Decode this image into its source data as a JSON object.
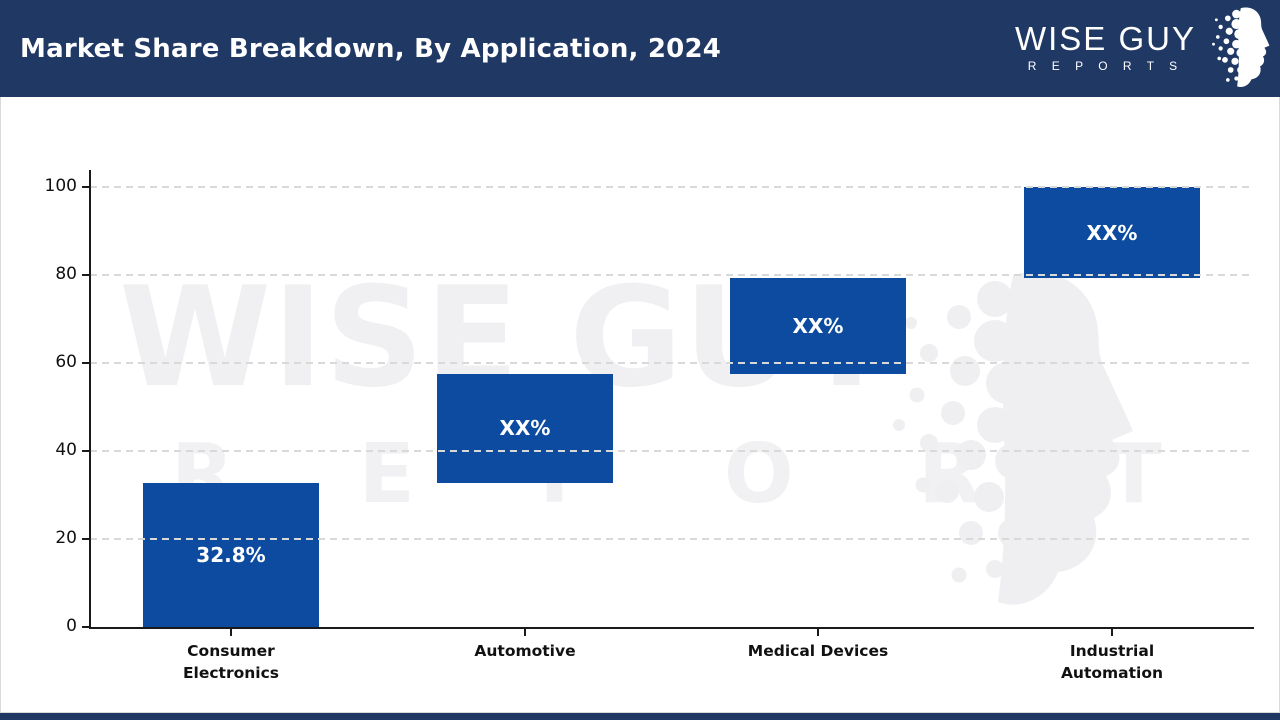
{
  "header": {
    "title": "Market Share Breakdown, By Application, 2024",
    "brand": {
      "name": "WISE GUY",
      "subtitle": "R E P O R T S"
    }
  },
  "watermark": {
    "line1": "WISE GUY",
    "line2": "R E P O R T S"
  },
  "colors": {
    "header_bg": "#1f3864",
    "bar": "#0c4ba0",
    "grid": "#d9d9d9",
    "axis": "#1a1a1a",
    "watermark": "#f0f0f2"
  },
  "chart_data": {
    "type": "bar",
    "subtype": "waterfall-stepped",
    "title": "Market Share Breakdown, By Application, 2024",
    "xlabel": "",
    "ylabel": "",
    "ylim": [
      0,
      100
    ],
    "y_ticks": [
      0,
      20,
      40,
      60,
      80,
      100
    ],
    "grid": "horizontal dashed, drawn over bars",
    "legend": "none",
    "categories": [
      "Consumer\nElectronics",
      "Automotive",
      "Medical Devices",
      "Industrial\nAutomation"
    ],
    "segments": [
      {
        "category": "Consumer\nElectronics",
        "start": 0,
        "end": 32.8,
        "label": "32.8%"
      },
      {
        "category": "Automotive",
        "start": 32.8,
        "end": 57.5,
        "label": "XX%"
      },
      {
        "category": "Medical Devices",
        "start": 57.5,
        "end": 79.3,
        "label": "XX%"
      },
      {
        "category": "Industrial\nAutomation",
        "start": 79.3,
        "end": 100,
        "label": "XX%"
      }
    ],
    "value_labels": [
      "32.8%",
      "XX%",
      "XX%",
      "XX%"
    ]
  }
}
